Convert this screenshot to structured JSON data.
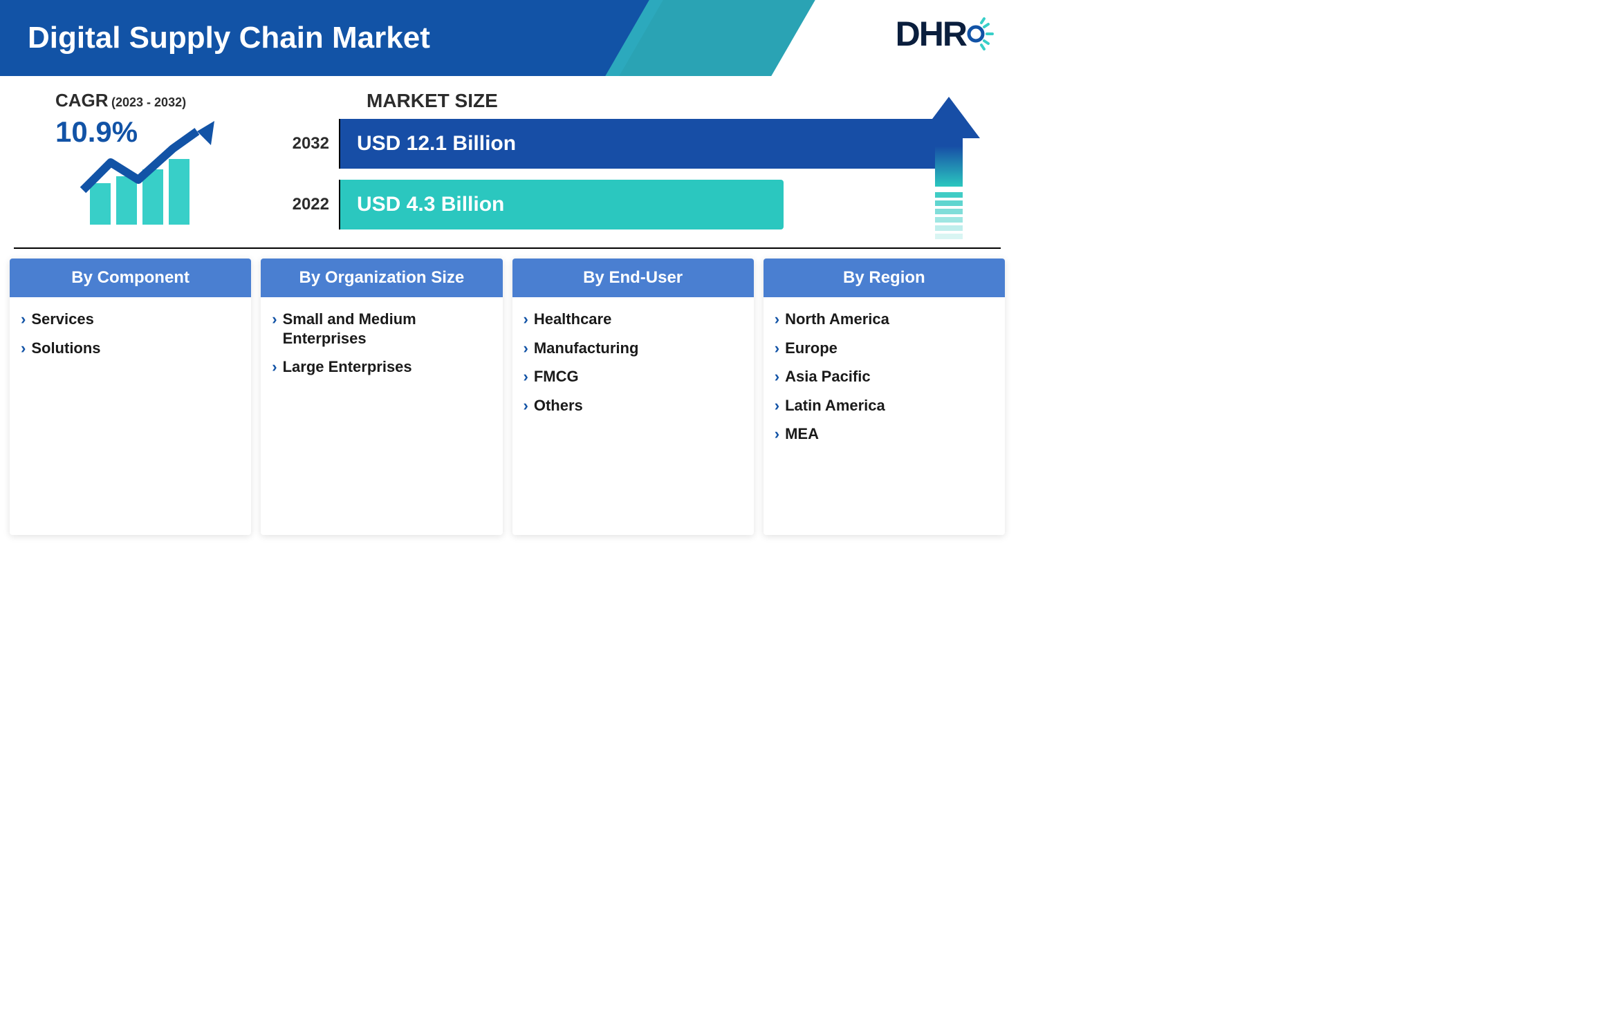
{
  "header": {
    "title": "Digital Supply Chain Market",
    "bg_color": "#1253a6",
    "stripe_teal": "#38cfc8",
    "stripe_navy": "#0d3d87",
    "logo_text": "DHR",
    "logo_accent_color": "#1253a6",
    "logo_gear_color": "#38cfc8"
  },
  "cagr": {
    "label": "CAGR",
    "range": "(2023 - 2032)",
    "value": "10.9%",
    "value_color": "#1253a6",
    "bar_color": "#38cfc8",
    "line_color": "#1253a6"
  },
  "market_size": {
    "title": "MARKET SIZE",
    "bars": [
      {
        "year": "2032",
        "label": "USD 12.1 Billion",
        "width_pct": 98,
        "color": "#174ea6"
      },
      {
        "year": "2022",
        "label": "USD 4.3 Billion",
        "width_pct": 70,
        "color": "#2bc7bf"
      }
    ],
    "arrow_top_color": "#174ea6",
    "arrow_bottom_color": "#2bc7bf"
  },
  "segments": [
    {
      "title": "By Component",
      "items": [
        "Services",
        "Solutions"
      ]
    },
    {
      "title": "By Organization Size",
      "items": [
        "Small and Medium Enterprises",
        "Large Enterprises"
      ]
    },
    {
      "title": "By End-User",
      "items": [
        "Healthcare",
        "Manufacturing",
        "FMCG",
        "Others"
      ]
    },
    {
      "title": "By Region",
      "items": [
        "North America",
        "Europe",
        "Asia Pacific",
        "Latin America",
        "MEA"
      ]
    }
  ],
  "styling": {
    "segment_header_bg": "#4a7fd1",
    "segment_header_text": "#ffffff",
    "chevron_color": "#1253a6",
    "item_text_color": "#1a1a1a",
    "background": "#ffffff",
    "card_shadow": "0 2px 10px rgba(0,0,0,0.12)"
  }
}
